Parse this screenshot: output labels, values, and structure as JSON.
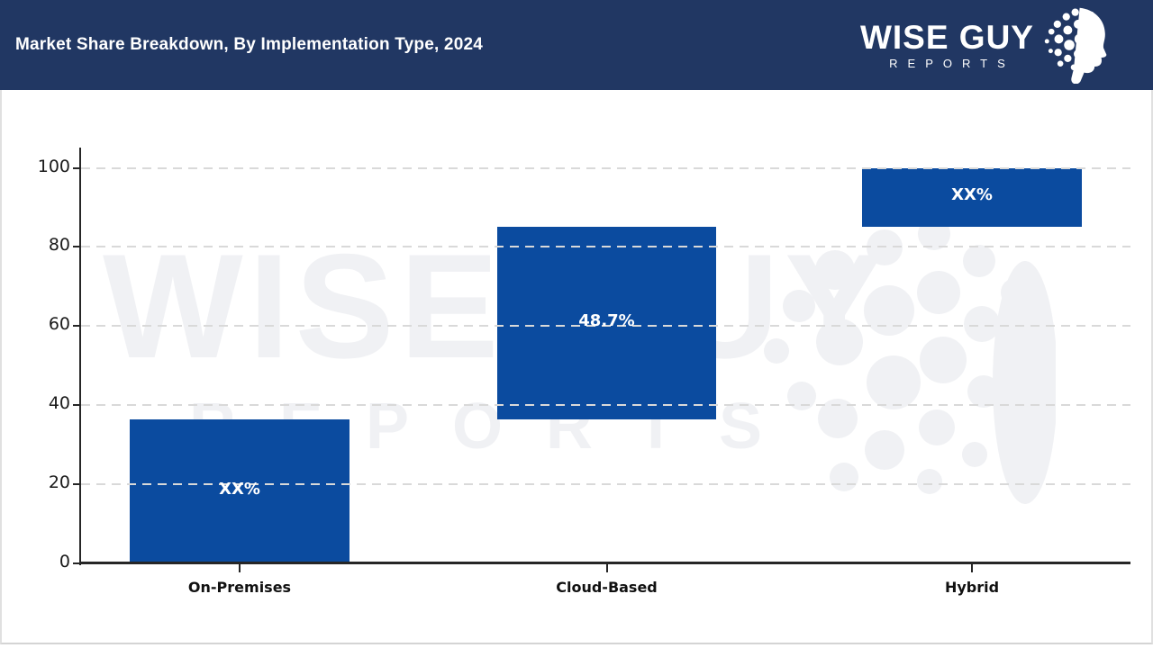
{
  "header": {
    "title": "Market Share Breakdown, By Implementation Type, 2024"
  },
  "logo": {
    "wordmark": "WISE GUY",
    "subtitle": "REPORTS"
  },
  "watermark": {
    "wordmark": "WISE GUY",
    "subtitle": "REPORTS"
  },
  "colors": {
    "header_bg": "#213763",
    "bar": "#0B4B9F",
    "grid": "#D9D9D9",
    "axis": "#262626",
    "tick_label": "#1A1A1A",
    "bar_label": "#FFFFFF",
    "watermark": "#F0F1F4"
  },
  "chart_data": {
    "type": "bar",
    "subtype": "floating-waterfall",
    "title": "Market Share Breakdown, By Implementation Type, 2024",
    "categories": [
      "On-Premises",
      "Cloud-Based",
      "Hybrid"
    ],
    "segments": [
      {
        "category": "On-Premises",
        "start": 0,
        "end": 36.4,
        "label": "XX%"
      },
      {
        "category": "Cloud-Based",
        "start": 36.4,
        "end": 85.1,
        "label": "48.7%"
      },
      {
        "category": "Hybrid",
        "start": 85.1,
        "end": 100,
        "label": "XX%"
      }
    ],
    "yticks": [
      0,
      20,
      40,
      60,
      80,
      100
    ],
    "ylim": [
      0,
      105
    ],
    "xlabel": "",
    "ylabel": "",
    "legend": null,
    "grid": "horizontal-dashed",
    "bar_color": "#0B4B9F",
    "label_color": "#FFFFFF"
  }
}
